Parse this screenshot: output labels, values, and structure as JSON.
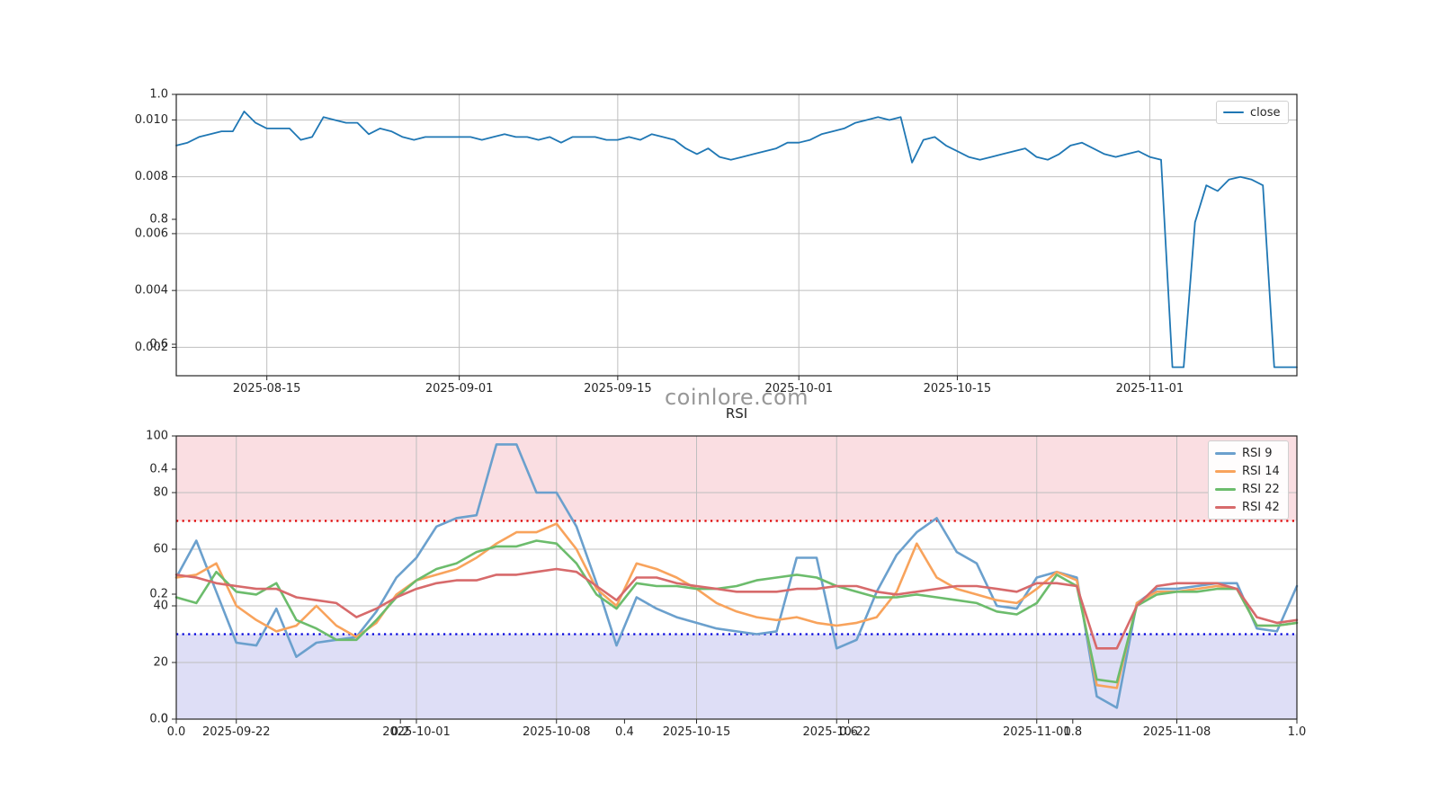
{
  "watermark": "coinlore.com",
  "chart_data": [
    {
      "type": "line",
      "title": "",
      "legend_position": "upper right",
      "grid": true,
      "ylim": [
        0.001,
        0.0109
      ],
      "yticks": [
        {
          "value": 0.01,
          "label": "0.010"
        },
        {
          "value": 0.008,
          "label": "0.008"
        },
        {
          "value": 0.006,
          "label": "0.006"
        },
        {
          "value": 0.004,
          "label": "0.004"
        },
        {
          "value": 0.002,
          "label": "0.002"
        }
      ],
      "xticks": [
        {
          "index": 8,
          "label": "2025-08-15"
        },
        {
          "index": 25,
          "label": "2025-09-01"
        },
        {
          "index": 39,
          "label": "2025-09-15"
        },
        {
          "index": 55,
          "label": "2025-10-01"
        },
        {
          "index": 69,
          "label": "2025-10-15"
        },
        {
          "index": 86,
          "label": "2025-11-01"
        }
      ],
      "series": [
        {
          "name": "close",
          "color": "#1f77b4",
          "values": [
            0.0091,
            0.0092,
            0.0094,
            0.0095,
            0.0096,
            0.0096,
            0.0103,
            0.0099,
            0.0097,
            0.0097,
            0.0097,
            0.0093,
            0.0094,
            0.0101,
            0.01,
            0.0099,
            0.0099,
            0.0095,
            0.0097,
            0.0096,
            0.0094,
            0.0093,
            0.0094,
            0.0094,
            0.0094,
            0.0094,
            0.0094,
            0.0093,
            0.0094,
            0.0095,
            0.0094,
            0.0094,
            0.0093,
            0.0094,
            0.0092,
            0.0094,
            0.0094,
            0.0094,
            0.0093,
            0.0093,
            0.0094,
            0.0093,
            0.0095,
            0.0094,
            0.0093,
            0.009,
            0.0088,
            0.009,
            0.0087,
            0.0086,
            0.0087,
            0.0088,
            0.0089,
            0.009,
            0.0092,
            0.0092,
            0.0093,
            0.0095,
            0.0096,
            0.0097,
            0.0099,
            0.01,
            0.0101,
            0.01,
            0.0101,
            0.0085,
            0.0093,
            0.0094,
            0.0091,
            0.0089,
            0.0087,
            0.0086,
            0.0087,
            0.0088,
            0.0089,
            0.009,
            0.0087,
            0.0086,
            0.0088,
            0.0091,
            0.0092,
            0.009,
            0.0088,
            0.0087,
            0.0088,
            0.0089,
            0.0087,
            0.0086,
            0.0013,
            0.0013,
            0.0064,
            0.0077,
            0.0075,
            0.0079,
            0.008,
            0.0079,
            0.0077,
            0.0013,
            0.0013,
            0.0013
          ]
        }
      ]
    },
    {
      "type": "line",
      "title": "RSI",
      "legend_position": "upper right",
      "grid": true,
      "ylim": [
        0,
        100
      ],
      "yticks": [
        {
          "value": 100,
          "label": "100"
        },
        {
          "value": 80,
          "label": "80"
        },
        {
          "value": 60,
          "label": "60"
        },
        {
          "value": 40,
          "label": "40"
        },
        {
          "value": 20,
          "label": "20"
        },
        {
          "value": 0,
          "label": "0"
        }
      ],
      "xticks": [
        {
          "index": 3,
          "label": "2025-09-22"
        },
        {
          "index": 12,
          "label": "2025-10-01"
        },
        {
          "index": 19,
          "label": "2025-10-08"
        },
        {
          "index": 26,
          "label": "2025-10-15"
        },
        {
          "index": 33,
          "label": "2025-10-22"
        },
        {
          "index": 43,
          "label": "2025-11-01"
        },
        {
          "index": 50,
          "label": "2025-11-08"
        }
      ],
      "bands": [
        {
          "from": 70,
          "to": 100,
          "color": "#fadee2",
          "meaning": "overbought"
        },
        {
          "from": 0,
          "to": 30,
          "color": "#dedef6",
          "meaning": "oversold"
        }
      ],
      "hlines": [
        {
          "value": 70,
          "color": "#dd0000"
        },
        {
          "value": 30,
          "color": "#0000dd"
        }
      ],
      "series": [
        {
          "name": "RSI 9",
          "color": "#6ba0cd",
          "values": [
            50,
            63,
            45,
            27,
            26,
            39,
            22,
            27,
            28,
            29,
            38,
            50,
            57,
            68,
            71,
            72,
            97,
            97,
            80,
            80,
            68,
            48,
            26,
            43,
            39,
            36,
            34,
            32,
            31,
            30,
            31,
            57,
            57,
            25,
            28,
            45,
            58,
            66,
            71,
            59,
            55,
            40,
            39,
            50,
            52,
            50,
            8,
            4,
            41,
            46,
            46,
            47,
            48,
            48,
            32,
            31,
            47
          ]
        },
        {
          "name": "RSI 14",
          "color": "#f8a35c",
          "values": [
            50,
            51,
            55,
            40,
            35,
            31,
            33,
            40,
            33,
            29,
            34,
            44,
            49,
            51,
            53,
            57,
            62,
            66,
            66,
            69,
            60,
            46,
            40,
            55,
            53,
            50,
            46,
            41,
            38,
            36,
            35,
            36,
            34,
            33,
            34,
            36,
            45,
            62,
            50,
            46,
            44,
            42,
            41,
            46,
            52,
            49,
            12,
            11,
            41,
            45,
            45,
            46,
            47,
            46,
            33,
            33,
            34
          ]
        },
        {
          "name": "RSI 22",
          "color": "#6cbc6c",
          "values": [
            43,
            41,
            52,
            45,
            44,
            48,
            35,
            32,
            28,
            28,
            35,
            43,
            49,
            53,
            55,
            59,
            61,
            61,
            63,
            62,
            55,
            44,
            39,
            48,
            47,
            47,
            46,
            46,
            47,
            49,
            50,
            51,
            50,
            47,
            45,
            43,
            43,
            44,
            43,
            42,
            41,
            38,
            37,
            41,
            51,
            47,
            14,
            13,
            40,
            44,
            45,
            45,
            46,
            46,
            33,
            33,
            34
          ]
        },
        {
          "name": "RSI 42",
          "color": "#d76a6b",
          "values": [
            51,
            50,
            48,
            47,
            46,
            46,
            43,
            42,
            41,
            36,
            39,
            43,
            46,
            48,
            49,
            49,
            51,
            51,
            52,
            53,
            52,
            47,
            42,
            50,
            50,
            48,
            47,
            46,
            45,
            45,
            45,
            46,
            46,
            47,
            47,
            45,
            44,
            45,
            46,
            47,
            47,
            46,
            45,
            48,
            48,
            47,
            25,
            25,
            40,
            47,
            48,
            48,
            48,
            46,
            36,
            34,
            35
          ]
        }
      ]
    }
  ],
  "overlay_axis": {
    "xtick_labels": [
      "0.0",
      "0.2",
      "0.4",
      "0.6",
      "0.8",
      "1.0"
    ],
    "ytick_labels": [
      "0.0",
      "0.2",
      "0.4",
      "0.6",
      "0.8",
      "1.0"
    ]
  }
}
